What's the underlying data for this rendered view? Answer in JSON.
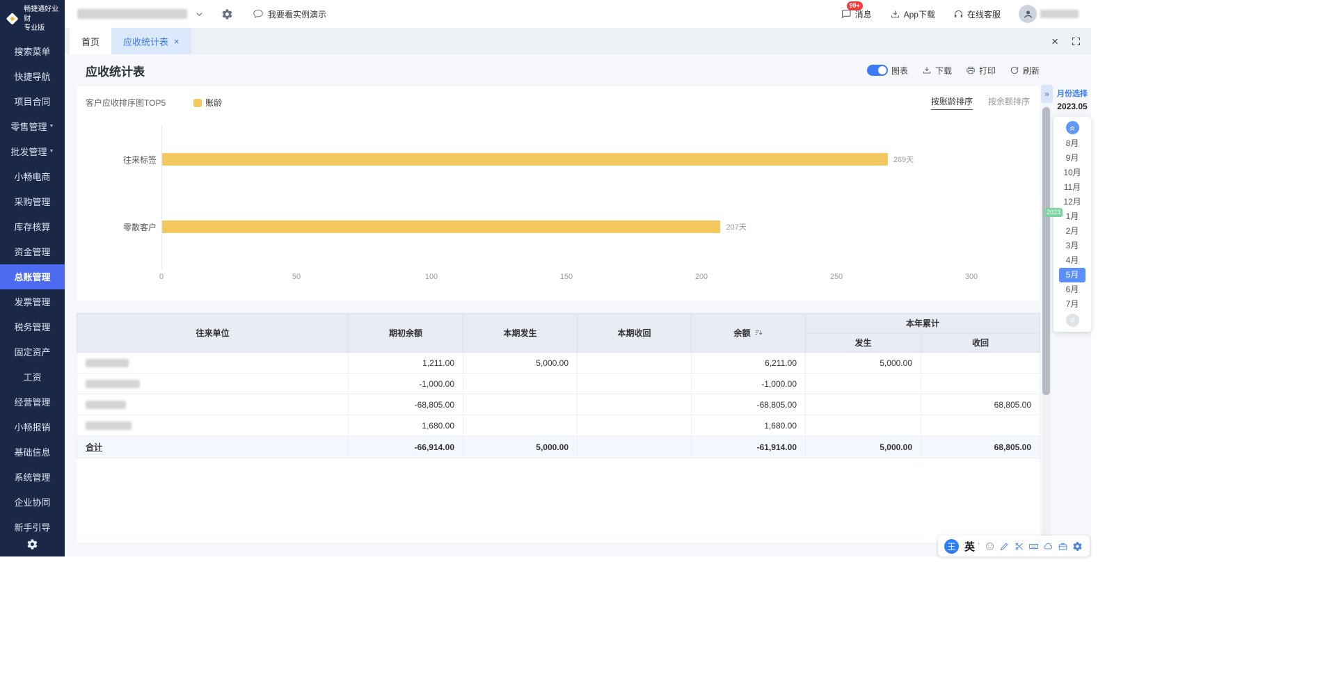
{
  "brand": {
    "line1": "畅捷通好业财",
    "line2": "专业版"
  },
  "topbar": {
    "demo_link": "我要看实例演示",
    "messages_label": "消息",
    "messages_badge": "99+",
    "app_download_label": "App下载",
    "support_label": "在线客服"
  },
  "tabs": {
    "home": "首页",
    "active": "应收统计表"
  },
  "sidebar": {
    "items": [
      {
        "label": "搜索菜单"
      },
      {
        "label": "快捷导航"
      },
      {
        "label": "项目合同"
      },
      {
        "label": "零售管理",
        "caret": true
      },
      {
        "label": "批发管理",
        "caret": true
      },
      {
        "label": "小畅电商"
      },
      {
        "label": "采购管理"
      },
      {
        "label": "库存核算"
      },
      {
        "label": "资金管理"
      },
      {
        "label": "总账管理",
        "active": true
      },
      {
        "label": "发票管理"
      },
      {
        "label": "税务管理"
      },
      {
        "label": "固定资产"
      },
      {
        "label": "工资"
      },
      {
        "label": "经营管理"
      },
      {
        "label": "小畅报销"
      },
      {
        "label": "基础信息"
      },
      {
        "label": "系统管理"
      },
      {
        "label": "企业协同"
      },
      {
        "label": "新手引导"
      }
    ]
  },
  "page": {
    "title": "应收统计表",
    "toolbar": {
      "chart_toggle": "图表",
      "download": "下载",
      "print": "打印",
      "refresh": "刷新"
    }
  },
  "chart": {
    "title": "客户应收排序图TOP5",
    "legend": "账龄",
    "sort_by_aging": "按账龄排序",
    "sort_by_balance": "按余额排序"
  },
  "chart_data": {
    "type": "bar",
    "orientation": "horizontal",
    "title": "客户应收排序图TOP5",
    "series_name": "账龄",
    "categories": [
      "往来标签",
      "零散客户"
    ],
    "values": [
      269,
      207
    ],
    "value_labels": [
      "269天",
      "207天"
    ],
    "unit": "天",
    "xlim": [
      0,
      300
    ],
    "xticks": [
      0,
      50,
      100,
      150,
      200,
      250,
      300
    ],
    "bar_color": "#f3c95f",
    "grid": "off",
    "legend_position": "top-left"
  },
  "table": {
    "headers": {
      "unit": "往来单位",
      "opening": "期初余额",
      "current": "本期发生",
      "received": "本期收回",
      "balance": "余额",
      "ytd": "本年累计",
      "ytd_incurred": "发生",
      "ytd_received": "收回"
    },
    "rows": [
      {
        "name_redacted": true,
        "opening": "1,211.00",
        "current": "5,000.00",
        "received": "",
        "balance": "6,211.00",
        "ytd_incurred": "5,000.00",
        "ytd_received": ""
      },
      {
        "name_redacted": true,
        "opening": "-1,000.00",
        "current": "",
        "received": "",
        "balance": "-1,000.00",
        "ytd_incurred": "",
        "ytd_received": ""
      },
      {
        "name_redacted": true,
        "opening": "-68,805.00",
        "current": "",
        "received": "",
        "balance": "-68,805.00",
        "ytd_incurred": "",
        "ytd_received": "68,805.00"
      },
      {
        "name_redacted": true,
        "opening": "1,680.00",
        "current": "",
        "received": "",
        "balance": "1,680.00",
        "ytd_incurred": "",
        "ytd_received": ""
      }
    ],
    "total": {
      "label": "合计",
      "opening": "-66,914.00",
      "current": "5,000.00",
      "received": "",
      "balance": "-61,914.00",
      "ytd_incurred": "5,000.00",
      "ytd_received": "68,805.00"
    }
  },
  "month_panel": {
    "title": "月份选择",
    "current": "2023.05",
    "year_badge": "2023",
    "months": [
      "8月",
      "9月",
      "10月",
      "11月",
      "12月",
      "1月",
      "2月",
      "3月",
      "4月",
      "5月",
      "6月",
      "7月"
    ],
    "active_month": "5月"
  },
  "ime": {
    "primary": "王",
    "mode": "英"
  },
  "icons": {
    "caret_down": "▼",
    "collapse": "»",
    "tab_close": "×",
    "window_close": "×"
  },
  "colors": {
    "accent_blue": "#3b7cf6",
    "sidebar_navy": "#1a2747",
    "sidebar_active": "#4d6bf0",
    "bar_yellow": "#f3c95f",
    "month_active": "#5b8ff9",
    "badge_red": "#f23c3c",
    "year_badge_green": "#7cd3a2"
  }
}
